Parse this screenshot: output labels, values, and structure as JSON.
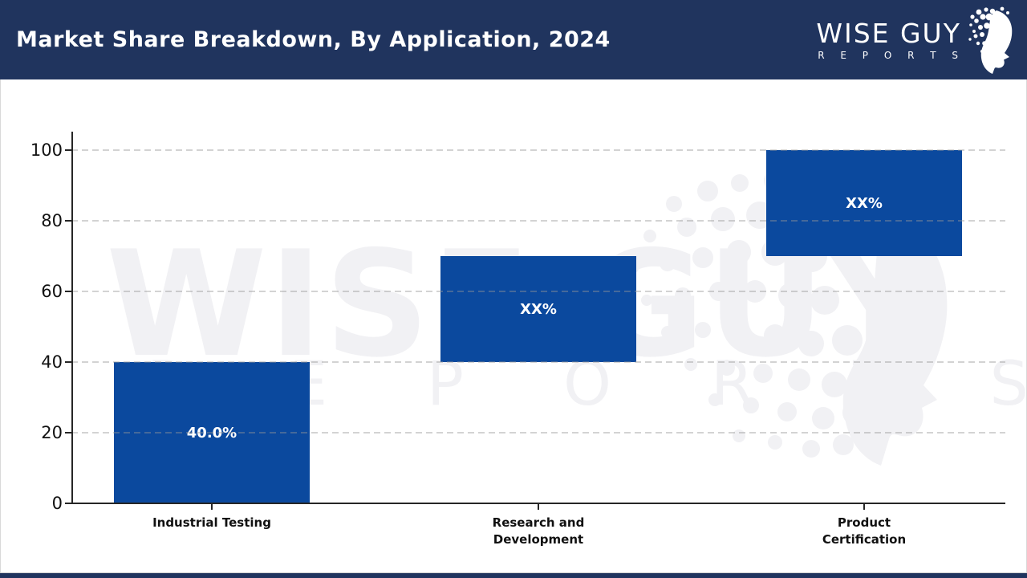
{
  "header": {
    "title": "Market Share Breakdown, By Application, 2024"
  },
  "logo": {
    "brand_line1": "WISE GUY",
    "brand_line2": "R E P O R T S"
  },
  "watermark": {
    "brand_line1": "WISE GUY",
    "brand_line2": "R E P O R T S"
  },
  "chart_data": {
    "type": "bar",
    "subtype": "floating-waterfall",
    "title": "Market Share Breakdown, By Application, 2024",
    "categories": [
      "Industrial Testing",
      "Research and Development",
      "Product Certification"
    ],
    "category_display": [
      "Industrial Testing",
      "Research and\nDevelopment",
      "Product\nCertification"
    ],
    "segments": [
      {
        "category": "Industrial Testing",
        "start": 0,
        "end": 40,
        "label": "40.0%"
      },
      {
        "category": "Research and Development",
        "start": 40,
        "end": 70,
        "label": "XX%"
      },
      {
        "category": "Product Certification",
        "start": 70,
        "end": 100,
        "label": "XX%"
      }
    ],
    "yticks": [
      0,
      20,
      40,
      60,
      80,
      100
    ],
    "ylim": [
      0,
      105
    ],
    "xlabel": "",
    "ylabel": "",
    "grid": "horizontal-dashed-above-bars",
    "legend": "none",
    "colors": {
      "bar": "#0b499e",
      "bar_label": "#ffffff",
      "axis": "#262626",
      "header_bg": "#20345e",
      "footer_bg": "#20345e",
      "watermark": "#f1f1f4"
    }
  }
}
